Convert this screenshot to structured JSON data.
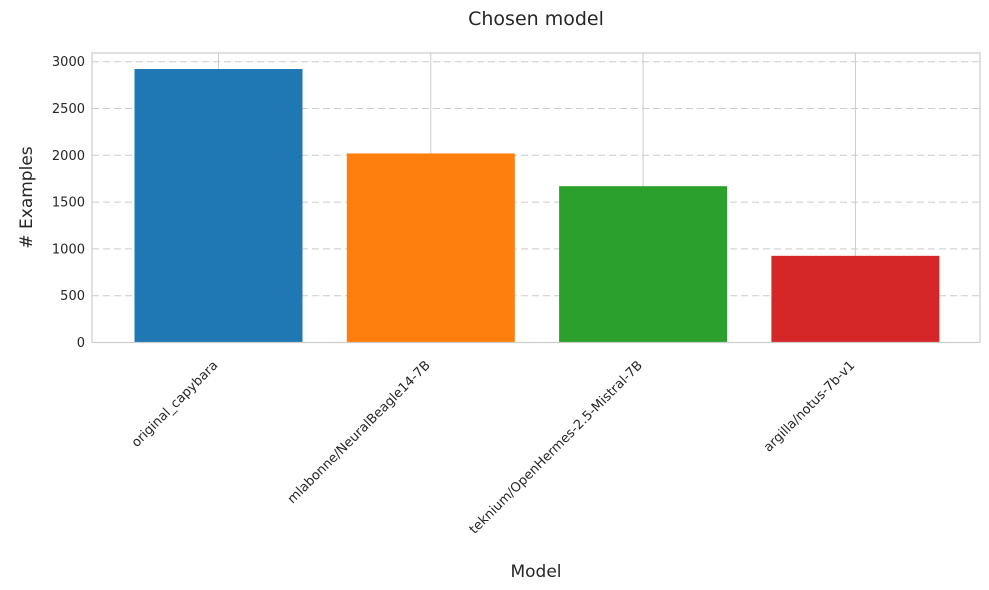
{
  "chart_data": {
    "type": "bar",
    "title": "Chosen model",
    "xlabel": "Model",
    "ylabel": "# Examples",
    "categories": [
      "original_capybara",
      "mlabonne/NeuralBeagle14-7B",
      "teknium/OpenHermes-2.5-Mistral-7B",
      "argilla/notus-7b-v1"
    ],
    "values": [
      2922,
      2020,
      1670,
      926
    ],
    "bar_colors": [
      "#1f77b4",
      "#ff7f0e",
      "#2ca02c",
      "#d62728"
    ],
    "yticks": [
      0,
      500,
      1000,
      1500,
      2000,
      2500,
      3000
    ],
    "ytick_labels": [
      "0",
      "500",
      "1000",
      "1500",
      "2000",
      "2500",
      "3000"
    ],
    "ylim": [
      0,
      3093
    ],
    "x_tick_rotation_deg": 45,
    "grid": {
      "horizontal_style": "dashed",
      "vertical_style": "solid-at-category-centers",
      "color": "#cccccc"
    },
    "frame_color": "#cccccc",
    "legend_position": "none",
    "text_color": "#262626",
    "background_color": "#ffffff"
  }
}
